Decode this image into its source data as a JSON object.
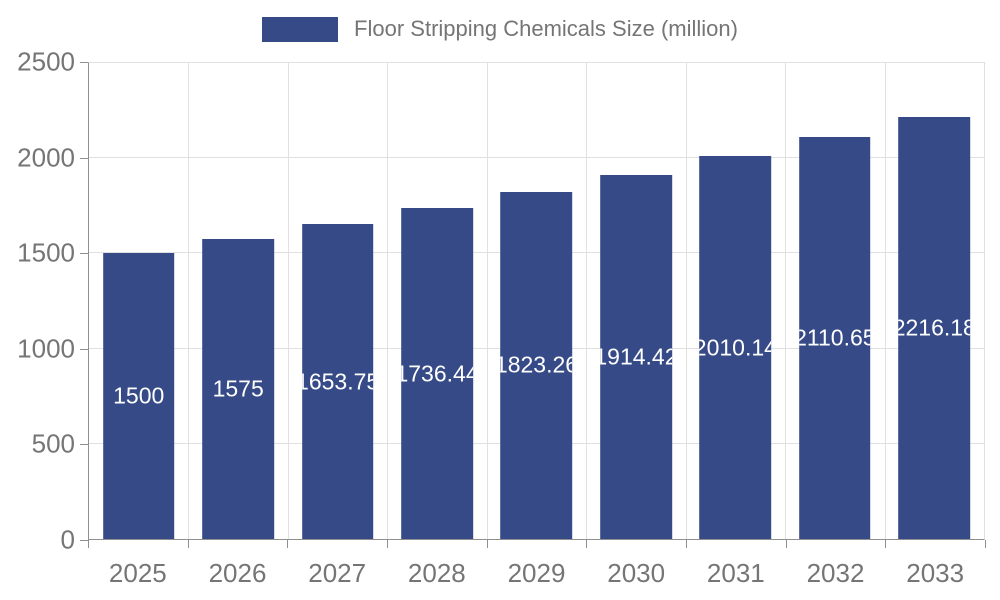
{
  "chart_data": {
    "type": "bar",
    "legend": "Floor Stripping Chemicals Size (million)",
    "categories": [
      "2025",
      "2026",
      "2027",
      "2028",
      "2029",
      "2030",
      "2031",
      "2032",
      "2033"
    ],
    "values": [
      1500,
      1575,
      1653.75,
      1736.44,
      1823.26,
      1914.42,
      2010.14,
      2110.65,
      2216.18
    ],
    "value_labels": [
      "1500",
      "1575",
      "1653.75",
      "1736.44",
      "1823.26",
      "1914.42",
      "2010.14",
      "2110.65",
      "2216.18"
    ],
    "ylim": [
      0,
      2500
    ],
    "yticks": [
      0,
      500,
      1000,
      1500,
      2000,
      2500
    ],
    "xlabel": "",
    "ylabel": "",
    "grid": true,
    "legend_position": "top",
    "colors": {
      "bar": "#364A87",
      "bar_label": "#FFFFFF",
      "grid": "#E0E0E0",
      "axis_line": "#8F8F8F",
      "tick_text": "#757575",
      "legend_text": "#757575",
      "background": "#FFFFFF"
    }
  }
}
